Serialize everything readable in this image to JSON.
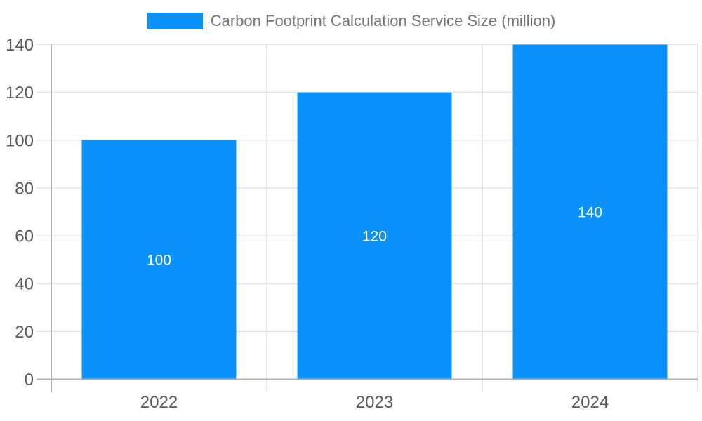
{
  "chart_data": {
    "type": "bar",
    "title": "Carbon Footprint Calculation Service Size (million)",
    "categories": [
      "2022",
      "2023",
      "2024"
    ],
    "series": [
      {
        "name": "Carbon Footprint Calculation Service Size (million)",
        "values": [
          100,
          120,
          140
        ]
      }
    ],
    "value_labels": [
      "100",
      "120",
      "140"
    ],
    "xlabel": "",
    "ylabel": "",
    "ylim": [
      0,
      140
    ],
    "yticks": [
      0,
      20,
      40,
      60,
      80,
      100,
      120,
      140
    ],
    "grid": true,
    "legend_position": "top-center"
  },
  "colors": {
    "bar": "#0a91fb",
    "bar_value_text": "#ffffff",
    "grid_line": "#e2e2e2",
    "axis_line": "#b0b0b0",
    "axis_text": "#58595b",
    "title_text": "#757575",
    "background": "#ffffff"
  }
}
